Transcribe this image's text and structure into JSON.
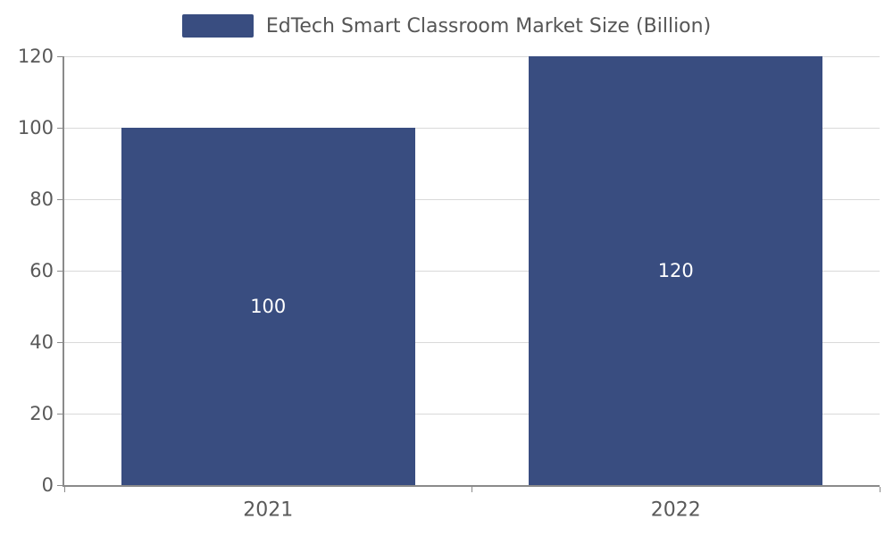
{
  "chart_data": {
    "type": "bar",
    "title": "EdTech Smart Classroom Market Size (Billion)",
    "categories": [
      "2021",
      "2022"
    ],
    "values": [
      100,
      120
    ],
    "data_labels": [
      "100",
      "120"
    ],
    "xlabel": "",
    "ylabel": "",
    "ylim": [
      0,
      120
    ],
    "yticks": [
      0,
      20,
      40,
      60,
      80,
      100,
      120
    ],
    "grid": true,
    "legend_position": "top-center",
    "colors": {
      "bar": "#394d80",
      "grid": "#d9d9d9",
      "axis": "#8a8a8a",
      "tick_text": "#595959",
      "legend_text": "#565656",
      "data_label": "#ffffff",
      "background": "#ffffff"
    }
  }
}
